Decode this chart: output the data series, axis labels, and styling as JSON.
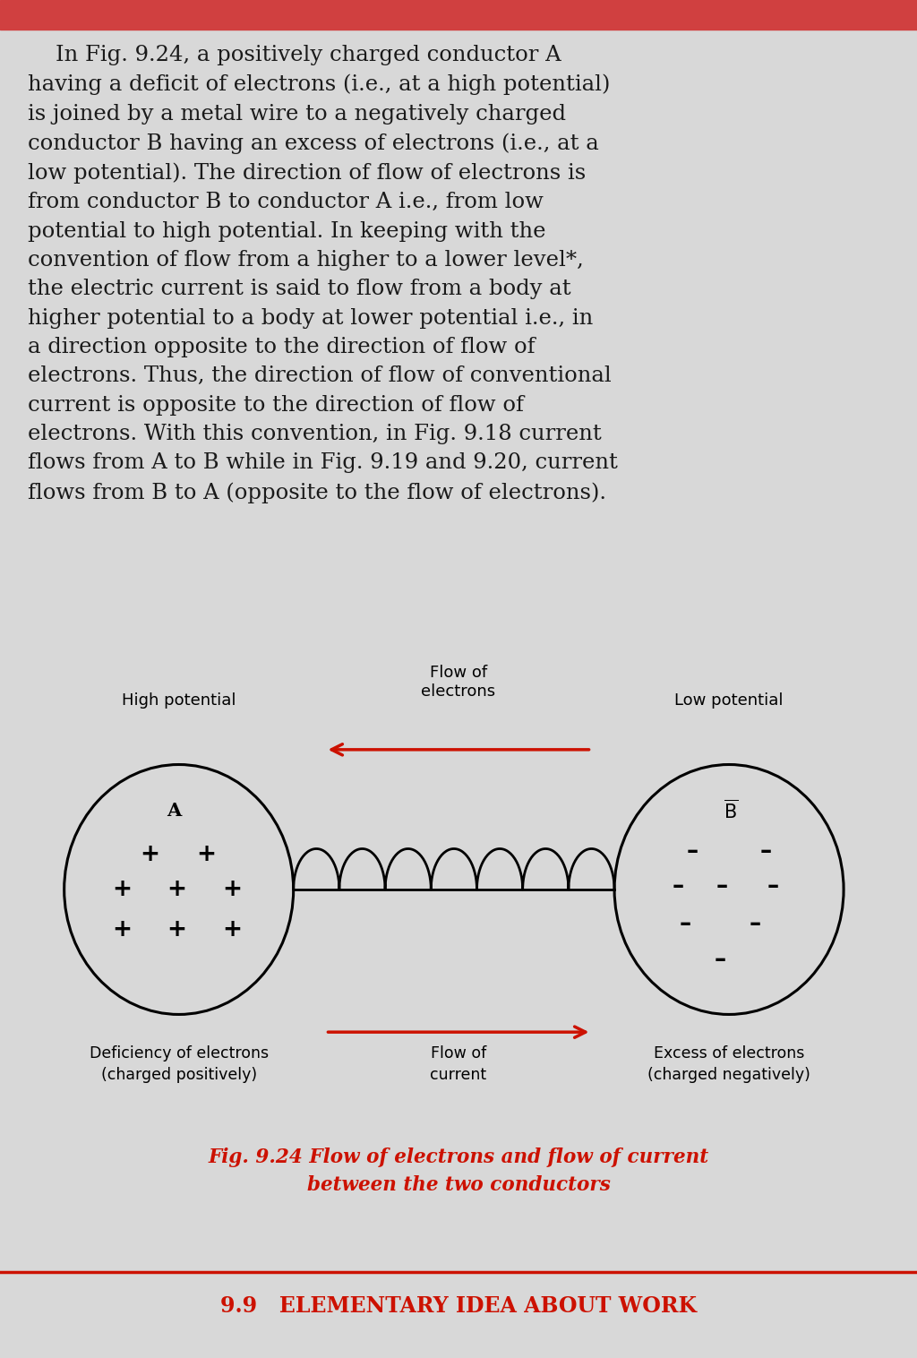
{
  "background_color": "#d8d8d8",
  "top_bar_color": "#d04040",
  "body_text_color": "#1a1a1a",
  "fig_caption_color": "#cc1100",
  "separator_color": "#cc1100",
  "bottom_text_color": "#cc1100",
  "paragraph": "    In Fig. 9.24, a positively charged conductor A\nhaving a deficit of electrons (i.e., at a high potential)\nis joined by a metal wire to a negatively charged\nconductor B having an excess of electrons (i.e., at a\nlow potential). The direction of flow of electrons is\nfrom conductor B to conductor A i.e., from low\npotential to high potential. In keeping with the\nconvention of flow from a higher to a lower level*,\nthe electric current is said to flow from a body at\nhigher potential to a body at lower potential i.e., in\na direction opposite to the direction of flow of\nelectrons. Thus, the direction of flow of conventional\ncurrent is opposite to the direction of flow of\nelectrons. With this convention, in Fig. 9.18 current\nflows from A to B while in Fig. 9.19 and 9.20, current\nflows from B to A (opposite to the flow of electrons).",
  "fig_caption_line1": "Fig. 9.24 Flow of electrons and flow of current",
  "fig_caption_line2": "between the two conductors",
  "bottom_text": "9.9   ELEMENTARY IDEA ABOUT WORK",
  "diagram": {
    "left_label": "High potential",
    "center_top_label": "Flow of\nelectrons",
    "right_label": "Low potential",
    "left_circle_label": "A",
    "right_circle_label": "B",
    "left_bottom_label": "Deficiency of electrons\n(charged positively)",
    "center_bottom_label": "Flow of\ncurrent",
    "right_bottom_label": "Excess of electrons\n(charged negatively)"
  }
}
